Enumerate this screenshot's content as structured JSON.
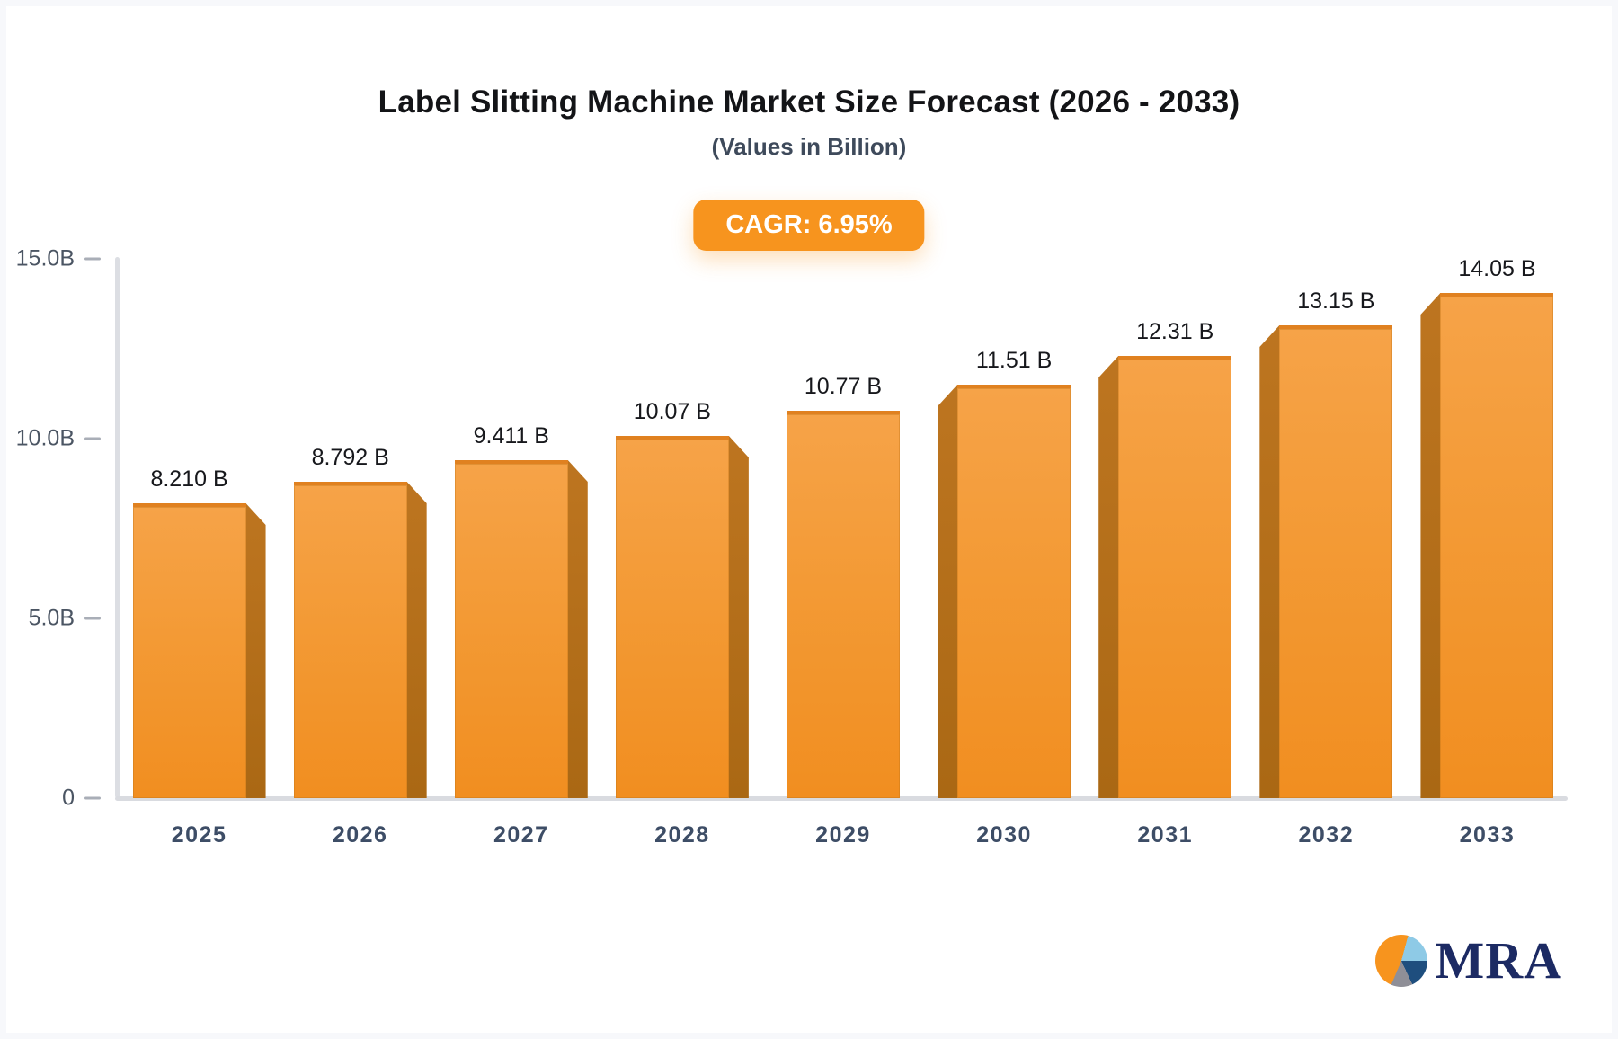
{
  "header": {
    "title": "Label Slitting Machine Market Size Forecast (2026 - 2033)",
    "subtitle": "(Values in Billion)"
  },
  "badge": {
    "label": "CAGR: 6.95%"
  },
  "chart_data": {
    "type": "bar",
    "title": "Label Slitting Machine Market Size Forecast (2026 - 2033)",
    "subtitle": "(Values in Billion)",
    "cagr_label": "CAGR: 6.95%",
    "categories": [
      "2025",
      "2026",
      "2027",
      "2028",
      "2029",
      "2030",
      "2031",
      "2032",
      "2033"
    ],
    "values": [
      8.21,
      8.792,
      9.411,
      10.07,
      10.77,
      11.51,
      12.31,
      13.15,
      14.05
    ],
    "value_labels": [
      "8.210 B",
      "8.792 B",
      "9.411 B",
      "10.07 B",
      "10.77 B",
      "11.51 B",
      "12.31 B",
      "13.15 B",
      "14.05 B"
    ],
    "unit": "B",
    "ylim": [
      0,
      15
    ],
    "yticks": [
      {
        "value": 15,
        "label": "15.0B"
      },
      {
        "value": 10,
        "label": "10.0B"
      },
      {
        "value": 5,
        "label": "5.0B"
      },
      {
        "value": 0,
        "label": "0"
      }
    ],
    "grid": false,
    "legend_position": "none",
    "colors": {
      "bar_face_top": "#f6a348",
      "bar_face_bottom": "#f18e20",
      "bar_side_3d": "#b26f1c",
      "bar_top_edge": "#e08120",
      "badge_bg": "#f7941e",
      "axis_line": "#dcdee3",
      "tick_text": "#4b5563",
      "category_text": "#3d4d66",
      "value_text": "#17181c",
      "title_text": "#131417",
      "subtitle_text": "#3e4a5b"
    }
  },
  "logo": {
    "text": "MRA",
    "pie_slices": [
      {
        "name": "orange",
        "color": "#f7941e"
      },
      {
        "name": "light-blue",
        "color": "#8ecae6"
      },
      {
        "name": "dark-blue",
        "color": "#1e4e7e"
      },
      {
        "name": "gray",
        "color": "#8f8f97"
      }
    ]
  }
}
